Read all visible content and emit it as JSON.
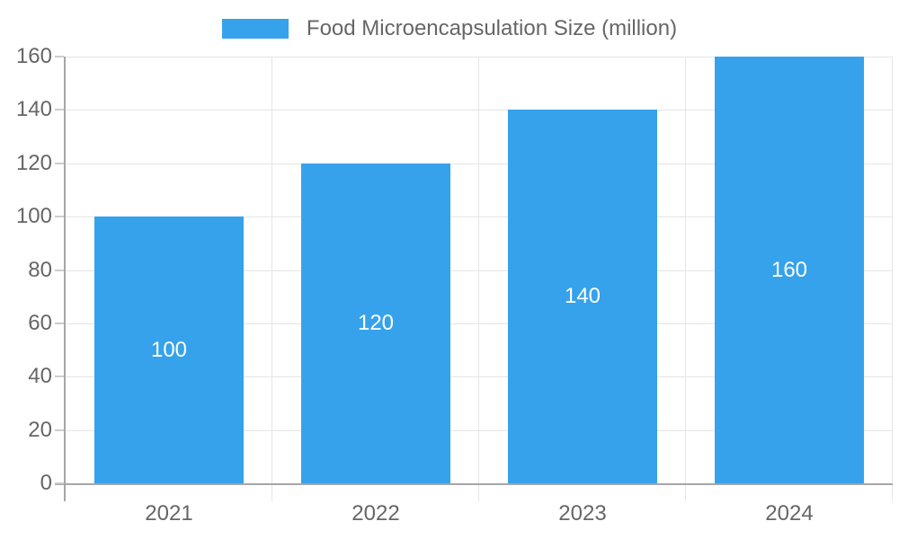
{
  "legend": {
    "label": "Food Microencapsulation Size (million)"
  },
  "chart_data": {
    "type": "bar",
    "title": "",
    "categories": [
      "2021",
      "2022",
      "2023",
      "2024"
    ],
    "values": [
      100,
      120,
      140,
      160
    ],
    "series": [
      {
        "name": "Food Microencapsulation Size (million)",
        "values": [
          100,
          120,
          140,
          160
        ]
      }
    ],
    "bar_value_labels": [
      "100",
      "120",
      "140",
      "160"
    ],
    "xlabel": "",
    "ylabel": "",
    "ylim": [
      0,
      160
    ],
    "ytick_step": 20,
    "yticks": [
      0,
      20,
      40,
      60,
      80,
      100,
      120,
      140,
      160
    ],
    "grid": true,
    "legend_position": "top-center",
    "colors": {
      "bar": "#36A2EB",
      "bar_label_text": "#FFFFFF",
      "gridline": "#E5E5E5",
      "axis_line": "#A6A6A6",
      "tick_mark": "#CCCCCC",
      "tick_label_text": "#666666",
      "legend_text": "#666666",
      "background": "#FFFFFF"
    }
  }
}
